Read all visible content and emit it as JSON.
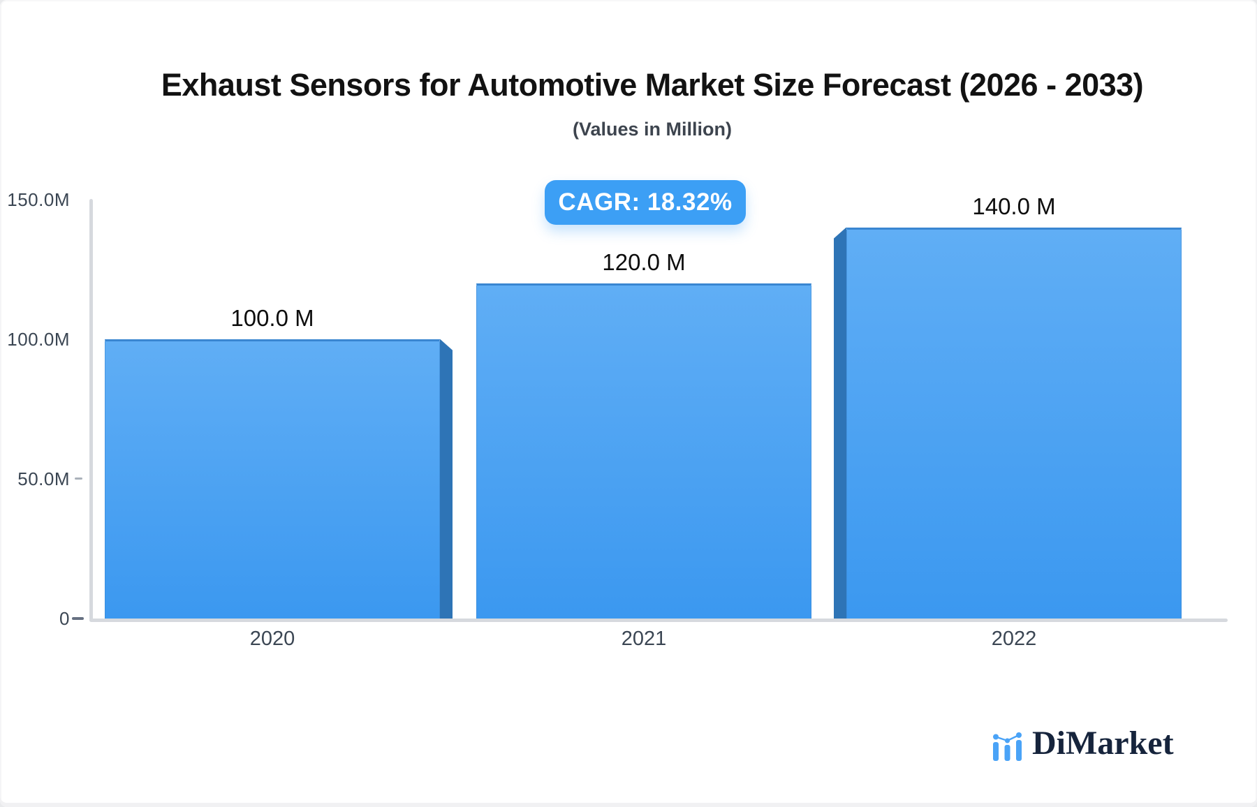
{
  "title": "Exhaust Sensors for Automotive Market Size Forecast (2026 - 2033)",
  "subtitle": "(Values in Million)",
  "badge": {
    "label": "CAGR: 18.32%"
  },
  "watermark": {
    "brand": "DiMarket",
    "icon": "bar-chart-sparkline-icon"
  },
  "chart_data": {
    "type": "bar",
    "title": "Exhaust Sensors for Automotive Market Size Forecast (2026 - 2033)",
    "subtitle": "(Values in Million)",
    "unit": "Million",
    "categories": [
      "2020",
      "2021",
      "2022"
    ],
    "values": [
      100,
      120,
      140
    ],
    "value_labels": [
      "100.0 M",
      "120.0 M",
      "140.0 M"
    ],
    "annotation": "CAGR: 18.32%",
    "ylim": [
      0,
      150
    ],
    "y_tick_values": [
      150,
      100,
      50,
      0
    ],
    "y_tick_labels": [
      "150.0M",
      "100.0M",
      "50.0M",
      "0"
    ],
    "y_tick_dash_values": [
      50,
      0
    ],
    "grid": false,
    "legend": false,
    "bevel_sides": [
      "right",
      "none",
      "left"
    ]
  },
  "colors": {
    "accent_blue": "#3c9ff5",
    "bar_gradient_top": "#60aef5",
    "bar_gradient_bottom": "#3b98f0",
    "bar_outline": "#3a86d1",
    "bar_bevel": "#2e74b6",
    "axis_line": "#d6d9de",
    "axis_text": "#3b4653",
    "title_text": "#121212",
    "subtitle_text": "#3d444e",
    "value_text": "#0d0d0d",
    "brand_blue": "#4aa3f7",
    "brand_navy": "#16243c"
  }
}
